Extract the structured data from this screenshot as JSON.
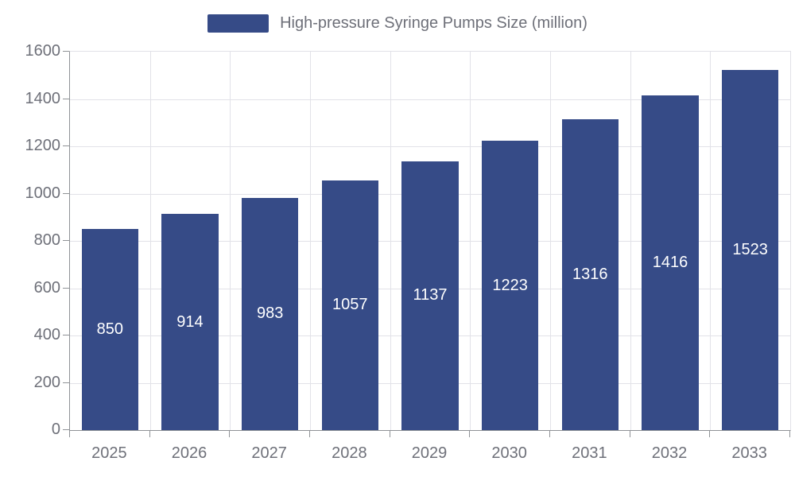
{
  "legend": {
    "label": "High-pressure Syringe Pumps Size (million)"
  },
  "chart_data": {
    "type": "bar",
    "title": "High-pressure Syringe Pumps Size (million)",
    "series_name": "High-pressure Syringe Pumps Size (million)",
    "categories": [
      "2025",
      "2026",
      "2027",
      "2028",
      "2029",
      "2030",
      "2031",
      "2032",
      "2033"
    ],
    "values": [
      850,
      914,
      983,
      1057,
      1137,
      1223,
      1316,
      1416,
      1523
    ],
    "xlabel": "",
    "ylabel": "",
    "ylim": [
      0,
      1600
    ],
    "yticks": [
      0,
      200,
      400,
      600,
      800,
      1000,
      1200,
      1400,
      1600
    ],
    "grid": true,
    "legend_position": "top",
    "value_labels_position": "inside-middle",
    "colors": {
      "bar": "#364b87",
      "value_label": "#ffffff",
      "axis_text": "#6e7079",
      "axis_line": "#8f9296",
      "gridline": "#e2e2e8",
      "background": "#ffffff"
    }
  }
}
